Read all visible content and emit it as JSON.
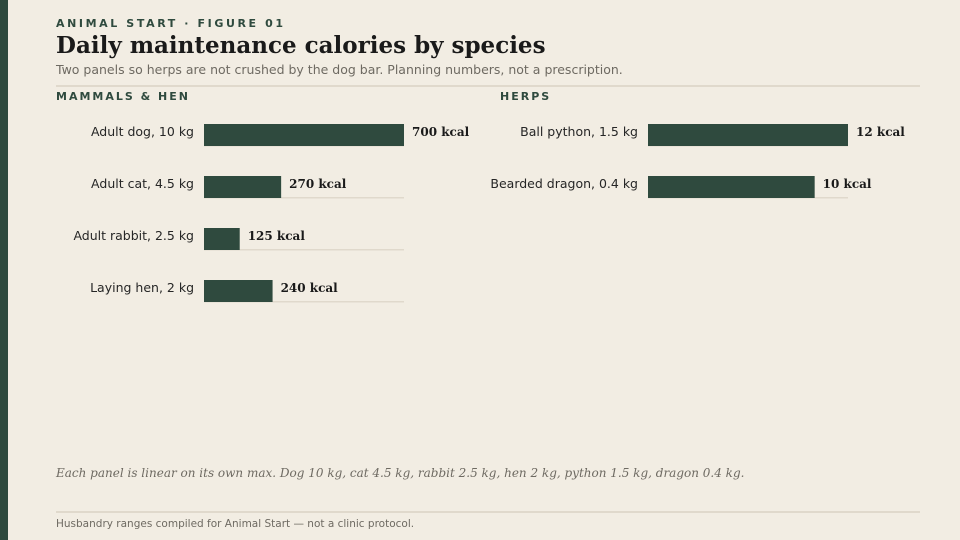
{
  "header": {
    "kicker": "ANIMAL START · FIGURE 01",
    "title": "Daily maintenance calories by species",
    "subtitle": "Two panels so herps are not crushed by the dog bar. Planning numbers, not a prescription."
  },
  "colors": {
    "bar": "#2f4a3e",
    "track": "#e0d9cc",
    "background": "#f2ede3"
  },
  "chart_data": [
    {
      "type": "bar",
      "orientation": "horizontal",
      "title": "MAMMALS & HEN",
      "categories": [
        "Adult dog, 10 kg",
        "Adult cat, 4.5 kg",
        "Adult rabbit, 2.5 kg",
        "Laying hen, 2 kg"
      ],
      "values": [
        700,
        270,
        125,
        240
      ],
      "value_labels": [
        "700 kcal",
        "270 kcal",
        "125 kcal",
        "240 kcal"
      ],
      "unit": "kcal",
      "xlim": [
        0,
        700
      ],
      "grid": false
    },
    {
      "type": "bar",
      "orientation": "horizontal",
      "title": "HERPS",
      "categories": [
        "Ball python, 1.5 kg",
        "Bearded dragon, 0.4 kg"
      ],
      "values": [
        12,
        10
      ],
      "value_labels": [
        "12 kcal",
        "10 kcal"
      ],
      "unit": "kcal",
      "xlim": [
        0,
        12
      ],
      "grid": false
    }
  ],
  "note": "Each panel is linear on its own max. Dog 10 kg, cat 4.5 kg, rabbit 2.5 kg, hen 2 kg, python 1.5 kg, dragon 0.4 kg.",
  "footer": "Husbandry ranges compiled for Animal Start — not a clinic protocol."
}
